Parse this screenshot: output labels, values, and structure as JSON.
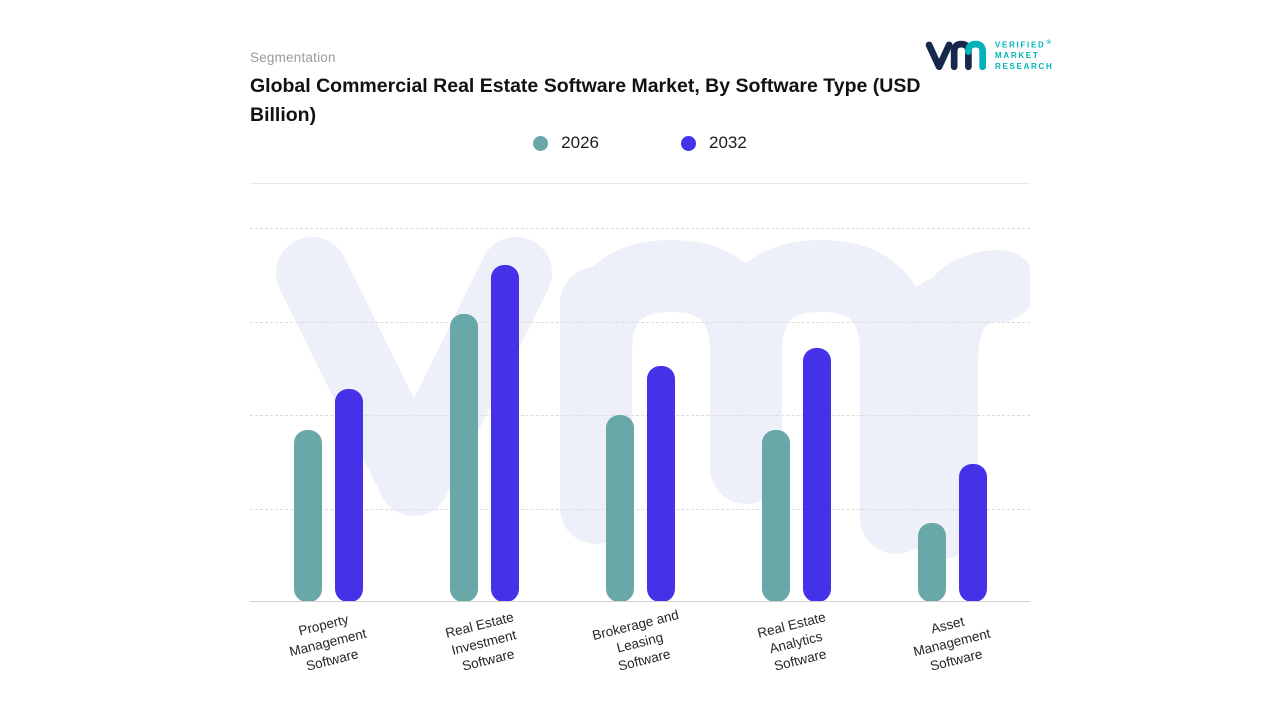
{
  "header": {
    "eyebrow": "Segmentation",
    "title": "Global Commercial Real Estate Software Market, By Software Type (USD Billion)"
  },
  "logo": {
    "lines": [
      "VERIFIED",
      "MARKET",
      "RESEARCH"
    ],
    "registered": "®",
    "brand_navy": "#16294d",
    "brand_teal": "#00b3ba"
  },
  "chart_data": {
    "type": "bar",
    "title": "Global Commercial Real Estate Software Market, By Software Type (USD Billion)",
    "categories": [
      "Property Management Software",
      "Real Estate Investment Software",
      "Brokerage and Leasing Software",
      "Real Estate Analytics Software",
      "Asset Management Software"
    ],
    "category_lines": [
      [
        "Property",
        "Management",
        "Software"
      ],
      [
        "Real Estate",
        "Investment",
        "Software"
      ],
      [
        "Brokerage and",
        "Leasing",
        "Software"
      ],
      [
        "Real Estate",
        "Analytics",
        "Software"
      ],
      [
        "Asset",
        "Management",
        "Software"
      ]
    ],
    "series": [
      {
        "name": "2026",
        "color": "#69a8a8",
        "values": [
          4.6,
          7.7,
          5.0,
          4.6,
          2.1
        ]
      },
      {
        "name": "2032",
        "color": "#4431e8",
        "values": [
          5.7,
          9.0,
          6.3,
          6.8,
          3.7
        ]
      }
    ],
    "xlabel": "",
    "ylabel": "USD Billion",
    "ylim": [
      0,
      10
    ],
    "grid": "dashed horizontal, no y tick labels",
    "legend_position": "top-center"
  }
}
